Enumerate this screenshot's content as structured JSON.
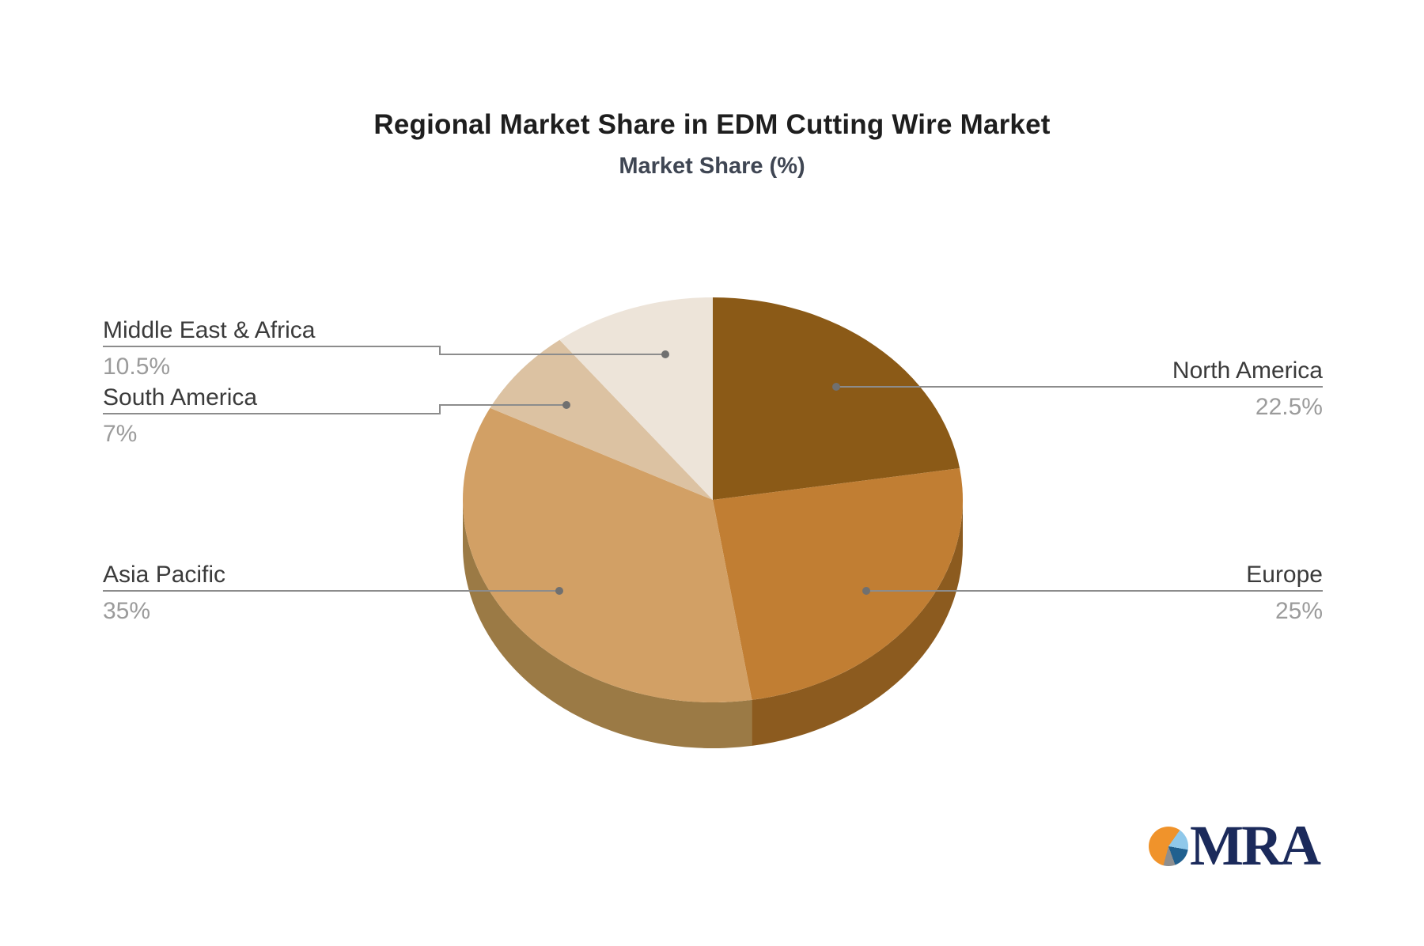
{
  "title": "Regional Market Share in EDM Cutting Wire Market",
  "subtitle": "Market Share (%)",
  "chart_data": {
    "type": "pie",
    "title": "Regional Market Share in EDM Cutting Wire Market",
    "subtitle": "Market Share (%)",
    "unit": "%",
    "effect": "3d",
    "start_angle_deg": 0,
    "direction": "clockwise",
    "labels": "callout",
    "legend_position": "none",
    "slices": [
      {
        "label": "North America",
        "value": 22.5,
        "display": "22.5%",
        "color": "#8b5a17",
        "side_color": "#6f4711"
      },
      {
        "label": "Europe",
        "value": 25,
        "display": "25%",
        "color": "#c17e33",
        "side_color": "#8c5b1f"
      },
      {
        "label": "Asia Pacific",
        "value": 35,
        "display": "35%",
        "color": "#d2a065",
        "side_color": "#9b7a45"
      },
      {
        "label": "South America",
        "value": 7,
        "display": "7%",
        "color": "#dcc2a2",
        "side_color": "#a58f73"
      },
      {
        "label": "Middle East & Africa",
        "value": 10.5,
        "display": "10.5%",
        "color": "#ede4d9",
        "side_color": "#b5a898"
      }
    ]
  },
  "logo": {
    "text": "MRA"
  }
}
